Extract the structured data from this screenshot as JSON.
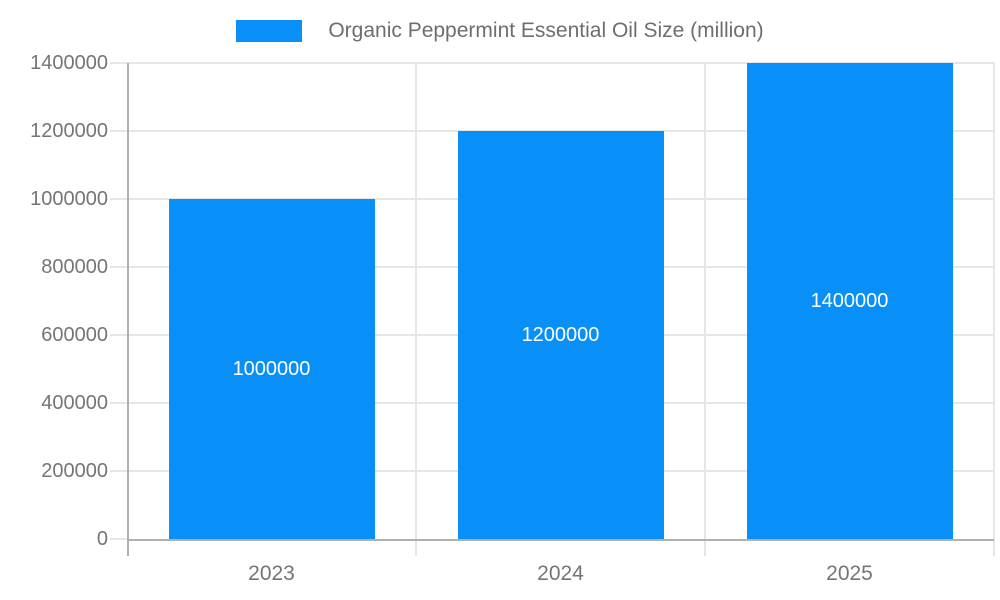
{
  "chart_data": {
    "type": "bar",
    "categories": [
      "2023",
      "2024",
      "2025"
    ],
    "values": [
      1000000,
      1200000,
      1400000
    ],
    "value_labels": [
      "1000000",
      "1200000",
      "1400000"
    ],
    "series_name": "Organic Peppermint Essential Oil Size (million)",
    "title": "",
    "xlabel": "",
    "ylabel": "",
    "ylim": [
      0,
      1400000
    ],
    "ytick_step": 200000,
    "ytick_labels": [
      "0",
      "200000",
      "400000",
      "600000",
      "800000",
      "1000000",
      "1200000",
      "1400000"
    ],
    "grid": true,
    "legend_position": "top",
    "colors": {
      "bar": "#0890F8",
      "bar_label": "#FFFFFF",
      "axis_text": "#757575",
      "legend_text": "#6E6E6E",
      "gridline": "#E6E6E6",
      "axis_line": "#B0B0B0"
    }
  }
}
